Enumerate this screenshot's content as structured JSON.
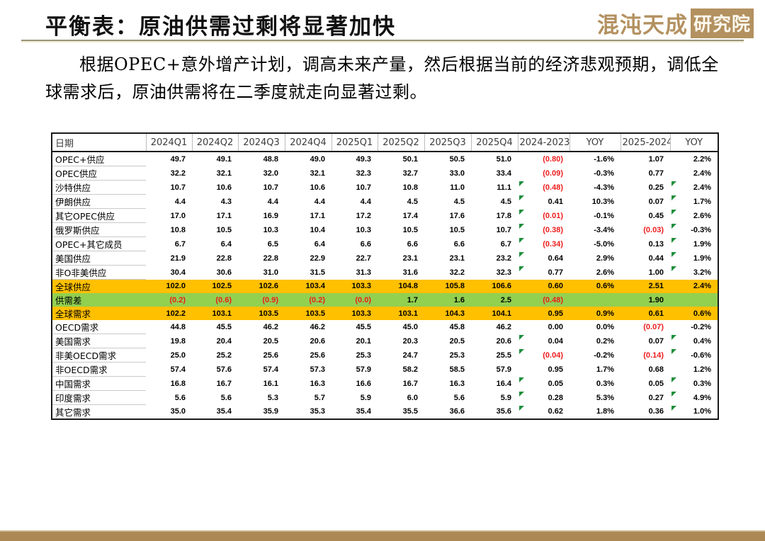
{
  "slide": {
    "title": "平衡表：原油供需过剩将显著加快",
    "logo": {
      "text_main": "混沌天成",
      "text_box": "研究院"
    },
    "body_paragraph": "根据OPEC+意外增产计划，调高未来产量，然后根据当前的经济悲观预期，调低全球需求后，原油供需将在二季度就走向显著过剩。"
  },
  "colors": {
    "highlight_orange": "#FFC000",
    "highlight_green": "#92D050",
    "negative_red": "#EE1C1C",
    "flag_green": "#1F8F3D",
    "accent_tan": "#B39160",
    "footer_bar": "#AC8855"
  },
  "table": {
    "columns": [
      "日期",
      "2024Q1",
      "2024Q2",
      "2024Q3",
      "2024Q4",
      "2025Q1",
      "2025Q2",
      "2025Q3",
      "2025Q4",
      "2024-2023",
      "YOY",
      "2025-2024",
      "YOY"
    ],
    "rows": [
      {
        "label": "OPEC+供应",
        "style": "normal",
        "flags": [],
        "values": [
          "49.7",
          "49.1",
          "48.8",
          "49.0",
          "49.3",
          "50.1",
          "50.5",
          "51.0",
          "(0.80)",
          "-1.6%",
          "1.07",
          "2.2%"
        ]
      },
      {
        "label": "OPEC供应",
        "style": "normal",
        "flags": [],
        "values": [
          "32.2",
          "32.1",
          "32.0",
          "32.1",
          "32.3",
          "32.7",
          "33.0",
          "33.4",
          "(0.09)",
          "-0.3%",
          "0.77",
          "2.4%"
        ]
      },
      {
        "label": "沙特供应",
        "style": "normal",
        "flags": [
          8,
          11
        ],
        "values": [
          "10.7",
          "10.6",
          "10.7",
          "10.6",
          "10.7",
          "10.8",
          "11.0",
          "11.1",
          "(0.48)",
          "-4.3%",
          "0.25",
          "2.4%"
        ]
      },
      {
        "label": "伊朗供应",
        "style": "normal",
        "flags": [
          8,
          11
        ],
        "values": [
          "4.4",
          "4.3",
          "4.4",
          "4.4",
          "4.4",
          "4.5",
          "4.5",
          "4.5",
          "0.41",
          "10.3%",
          "0.07",
          "1.7%"
        ]
      },
      {
        "label": "其它OPEC供应",
        "style": "normal",
        "flags": [
          8,
          11
        ],
        "values": [
          "17.0",
          "17.1",
          "16.9",
          "17.1",
          "17.2",
          "17.4",
          "17.6",
          "17.8",
          "(0.01)",
          "-0.1%",
          "0.45",
          "2.6%"
        ]
      },
      {
        "label": "俄罗斯供应",
        "style": "normal",
        "flags": [
          8,
          11
        ],
        "values": [
          "10.8",
          "10.5",
          "10.3",
          "10.4",
          "10.3",
          "10.5",
          "10.5",
          "10.7",
          "(0.38)",
          "-3.4%",
          "(0.03)",
          "-0.3%"
        ]
      },
      {
        "label": "OPEC+其它成员",
        "style": "normal",
        "flags": [
          8,
          11
        ],
        "values": [
          "6.7",
          "6.4",
          "6.5",
          "6.4",
          "6.6",
          "6.6",
          "6.6",
          "6.7",
          "(0.34)",
          "-5.0%",
          "0.13",
          "1.9%"
        ]
      },
      {
        "label": "美国供应",
        "style": "normal",
        "flags": [
          8,
          11
        ],
        "values": [
          "21.9",
          "22.8",
          "22.8",
          "22.9",
          "22.7",
          "23.1",
          "23.1",
          "23.2",
          "0.64",
          "2.9%",
          "0.44",
          "1.9%"
        ]
      },
      {
        "label": "非O非美供应",
        "style": "normal",
        "flags": [
          8,
          11
        ],
        "values": [
          "30.4",
          "30.6",
          "31.0",
          "31.5",
          "31.3",
          "31.6",
          "32.2",
          "32.3",
          "0.77",
          "2.6%",
          "1.00",
          "3.2%"
        ]
      },
      {
        "label": "全球供应",
        "style": "orange",
        "flags": [],
        "values": [
          "102.0",
          "102.5",
          "102.6",
          "103.4",
          "103.3",
          "104.8",
          "105.8",
          "106.6",
          "0.60",
          "0.6%",
          "2.51",
          "2.4%"
        ]
      },
      {
        "label": "供需差",
        "style": "green",
        "flags": [],
        "values": [
          "(0.2)",
          "(0.6)",
          "(0.9)",
          "(0.2)",
          "(0.0)",
          "1.7",
          "1.6",
          "2.5",
          "(0.48)",
          "",
          "1.90",
          ""
        ]
      },
      {
        "label": "全球需求",
        "style": "orange",
        "flags": [],
        "values": [
          "102.2",
          "103.1",
          "103.5",
          "103.5",
          "103.3",
          "103.1",
          "104.3",
          "104.1",
          "0.95",
          "0.9%",
          "0.61",
          "0.6%"
        ]
      },
      {
        "label": "OECD需求",
        "style": "normal",
        "flags": [],
        "values": [
          "44.8",
          "45.5",
          "46.2",
          "46.2",
          "45.5",
          "45.0",
          "45.8",
          "46.2",
          "0.00",
          "0.0%",
          "(0.07)",
          "-0.2%"
        ]
      },
      {
        "label": "美国需求",
        "style": "normal",
        "flags": [
          8,
          11
        ],
        "values": [
          "19.8",
          "20.4",
          "20.5",
          "20.6",
          "20.1",
          "20.3",
          "20.5",
          "20.6",
          "0.04",
          "0.2%",
          "0.07",
          "0.4%"
        ]
      },
      {
        "label": "非美OECD需求",
        "style": "normal",
        "flags": [
          8,
          11
        ],
        "values": [
          "25.0",
          "25.2",
          "25.6",
          "25.6",
          "25.3",
          "24.7",
          "25.3",
          "25.5",
          "(0.04)",
          "-0.2%",
          "(0.14)",
          "-0.6%"
        ]
      },
      {
        "label": "非OECD需求",
        "style": "normal",
        "flags": [],
        "values": [
          "57.4",
          "57.6",
          "57.4",
          "57.3",
          "57.9",
          "58.2",
          "58.5",
          "57.9",
          "0.95",
          "1.7%",
          "0.68",
          "1.2%"
        ]
      },
      {
        "label": "中国需求",
        "style": "normal",
        "flags": [
          8,
          11
        ],
        "values": [
          "16.8",
          "16.7",
          "16.1",
          "16.3",
          "16.6",
          "16.7",
          "16.3",
          "16.4",
          "0.05",
          "0.3%",
          "0.05",
          "0.3%"
        ]
      },
      {
        "label": "印度需求",
        "style": "normal",
        "flags": [
          8,
          11
        ],
        "values": [
          "5.6",
          "5.6",
          "5.3",
          "5.7",
          "5.9",
          "6.0",
          "5.6",
          "5.9",
          "0.28",
          "5.3%",
          "0.27",
          "4.9%"
        ]
      },
      {
        "label": "其它需求",
        "style": "normal",
        "flags": [
          8,
          11
        ],
        "values": [
          "35.0",
          "35.4",
          "35.9",
          "35.3",
          "35.4",
          "35.5",
          "36.6",
          "35.6",
          "0.62",
          "1.8%",
          "0.36",
          "1.0%"
        ]
      }
    ]
  }
}
